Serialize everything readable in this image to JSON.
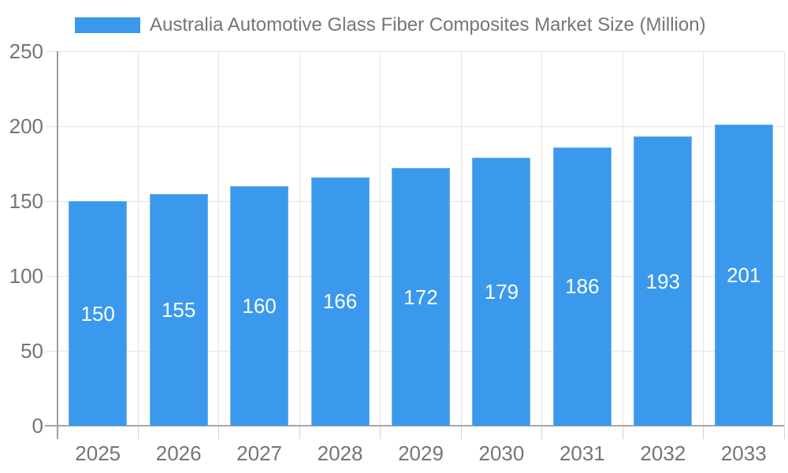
{
  "legend": {
    "label": "Australia Automotive Glass Fiber Composites Market Size (Million)",
    "swatch_color": "#3A99EC"
  },
  "chart_data": {
    "type": "bar",
    "title": "Australia Automotive Glass Fiber Composites Market Size (Million)",
    "categories": [
      "2025",
      "2026",
      "2027",
      "2028",
      "2029",
      "2030",
      "2031",
      "2032",
      "2033"
    ],
    "values": [
      150,
      155,
      160,
      166,
      172,
      179,
      186,
      193,
      201
    ],
    "xlabel": "",
    "ylabel": "",
    "ylim": [
      0,
      250
    ],
    "yticks": [
      0,
      50,
      100,
      150,
      200,
      250
    ],
    "grid": true,
    "legend_position": "top-left",
    "bar_color": "#3A99EC",
    "bar_border_color": "#6FB2EF",
    "bar_label_color": "#ffffff",
    "axis_text_color": "#757575",
    "gridline_color": "#e4e4e4",
    "axis_line_color": "#a6a6a6"
  }
}
